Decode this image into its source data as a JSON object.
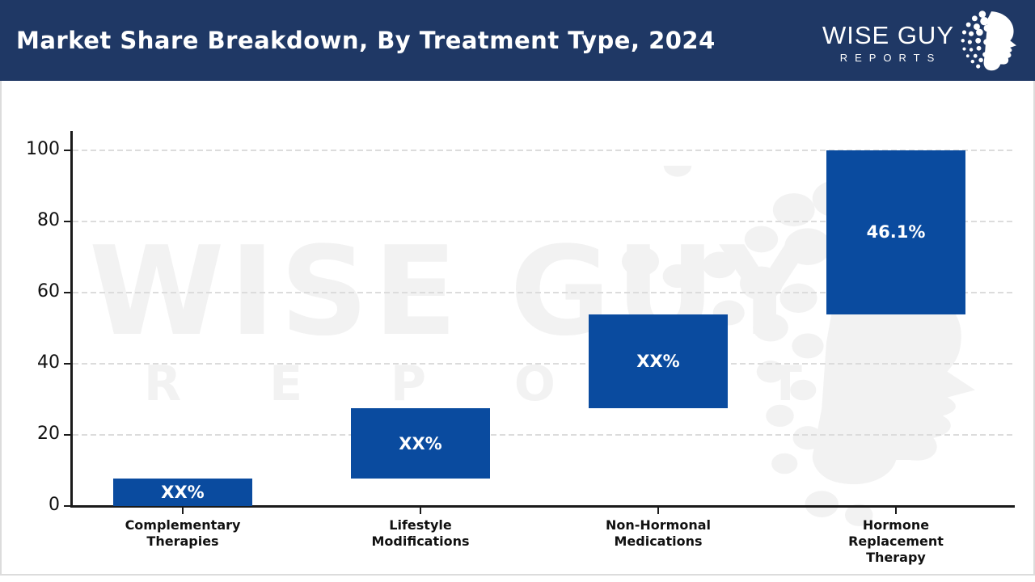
{
  "header": {
    "title": "Market Share Breakdown, By Treatment Type, 2024",
    "logo": {
      "line1": "WISE GUY",
      "line2": "REPORTS"
    }
  },
  "watermark": {
    "line1": "WISE GUY",
    "line2": "R E P O R T S"
  },
  "colors": {
    "header_bg": "#1f3865",
    "bar": "#0a4b9f",
    "grid": "#dcdcdc",
    "watermark": "#f2f2f2",
    "axis": "#1a1a1a",
    "value_label": "#ffffff"
  },
  "chart_data": {
    "type": "bar",
    "subtype": "waterfall",
    "title": "Market Share Breakdown, By Treatment Type, 2024",
    "categories": [
      "Complementary\nTherapies",
      "Lifestyle\nModifications",
      "Non-Hormonal\nMedications",
      "Hormone\nReplacement\nTherapy"
    ],
    "segments": [
      {
        "category": "Complementary Therapies",
        "start": 0,
        "end": 7.7,
        "value_label": "XX%"
      },
      {
        "category": "Lifestyle Modifications",
        "start": 7.7,
        "end": 27.5,
        "value_label": "XX%"
      },
      {
        "category": "Non-Hormonal Medications",
        "start": 27.5,
        "end": 53.9,
        "value_label": "XX%"
      },
      {
        "category": "Hormone Replacement Therapy",
        "start": 53.9,
        "end": 100,
        "value_label": "46.1%"
      }
    ],
    "ylim": [
      0,
      100
    ],
    "yticks": [
      0,
      20,
      40,
      60,
      80,
      100
    ],
    "xlabel": "",
    "ylabel": "",
    "grid": true,
    "legend": null
  }
}
